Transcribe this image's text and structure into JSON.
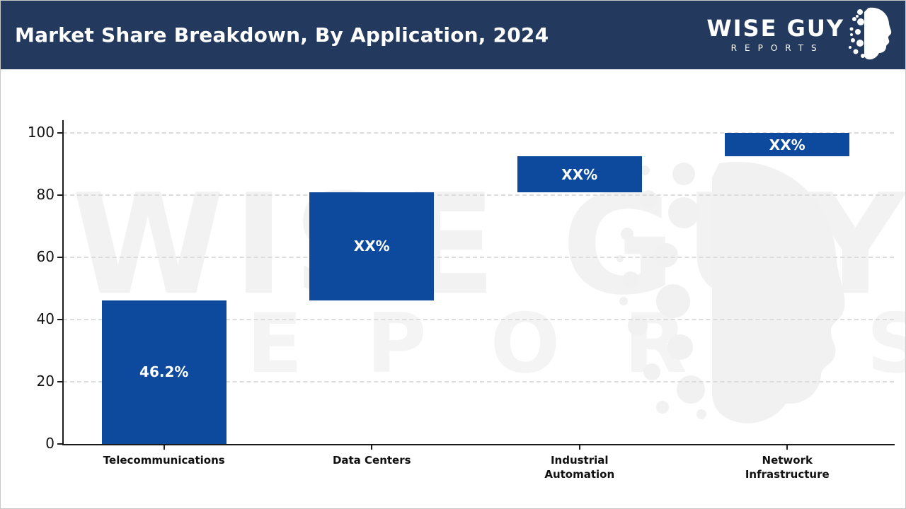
{
  "header": {
    "title": "Market Share Breakdown, By Application, 2024",
    "background": "#23395e",
    "logo": {
      "line1": "WISE GUY",
      "line2": "REPORTS",
      "head_icon": "dotted-head-profile"
    }
  },
  "watermark": {
    "line1": "WISE GUY",
    "line2": "REPORTS",
    "head_icon": "dotted-head-profile"
  },
  "chart_data": {
    "type": "bar",
    "subtype": "waterfall",
    "title": "Market Share Breakdown, By Application, 2024",
    "categories": [
      "Telecommunications",
      "Data Centers",
      "Industrial Automation",
      "Network Infrastructure"
    ],
    "bars": [
      {
        "category": "Telecommunications",
        "start": 0,
        "end": 46.2,
        "label": "46.2%"
      },
      {
        "category": "Data Centers",
        "start": 46.2,
        "end": 80.9,
        "label": "XX%"
      },
      {
        "category": "Industrial Automation",
        "start": 80.9,
        "end": 92.5,
        "label": "XX%"
      },
      {
        "category": "Network Infrastructure",
        "start": 92.5,
        "end": 100,
        "label": "XX%"
      }
    ],
    "xlabel": "",
    "ylabel": "",
    "yticks": [
      0,
      20,
      40,
      60,
      80,
      100
    ],
    "ylim": [
      0,
      104
    ],
    "grid": "horizontal-dashed",
    "legend": "none",
    "bar_color": "#0d4a9e",
    "bar_label_color": "#ffffff",
    "axis_color": "#1a1a1a",
    "grid_color": "#dcdcdc",
    "watermark_text": "WISE GUY REPORTS"
  }
}
